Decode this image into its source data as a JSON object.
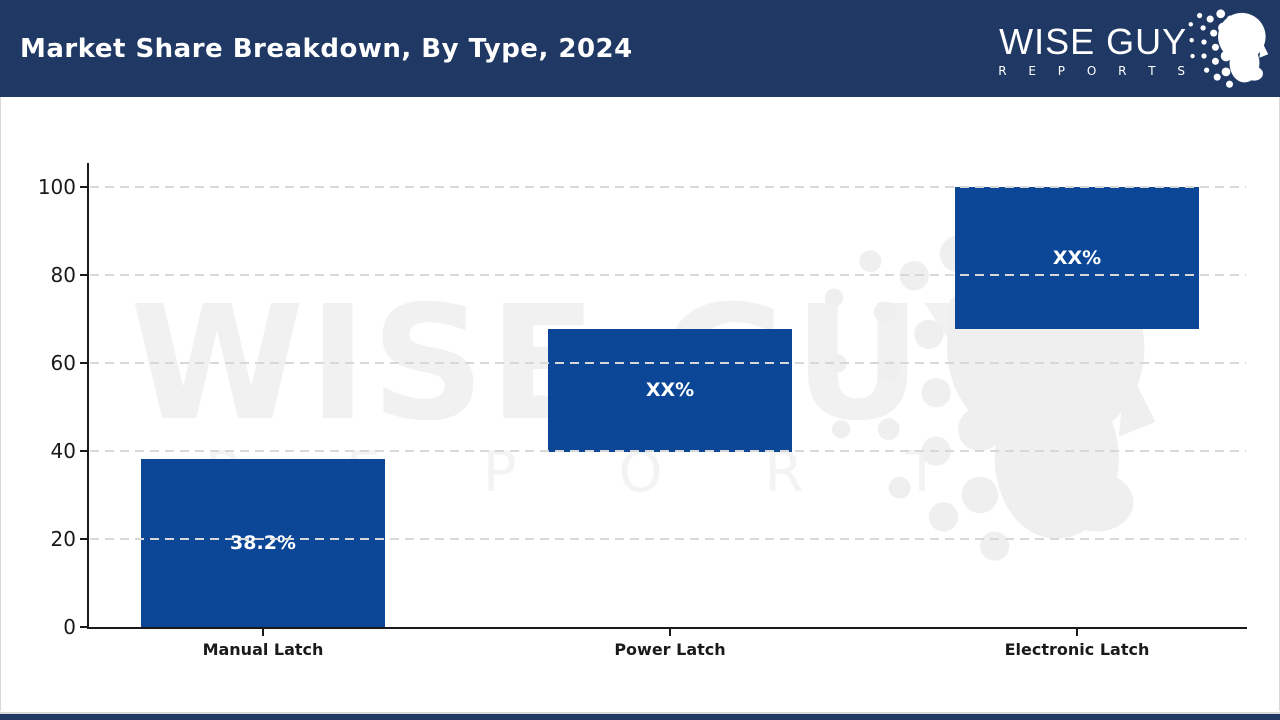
{
  "header": {
    "title": "Market Share Breakdown, By Type, 2024",
    "background_color": "#1f3864",
    "logo": {
      "line1": "WISE GUY",
      "line2": "R E P O R T S"
    }
  },
  "watermark": {
    "line1": "WISE GUY",
    "line2": "R E P O R T S"
  },
  "chart_data": {
    "type": "bar",
    "subtype": "waterfall",
    "title": "Market Share Breakdown, By Type, 2024",
    "categories": [
      "Manual Latch",
      "Power Latch",
      "Electronic Latch"
    ],
    "segments": [
      {
        "category": "Manual Latch",
        "start": 0,
        "end": 38.2,
        "label": "38.2%"
      },
      {
        "category": "Power Latch",
        "start": 39.8,
        "end": 67.7,
        "label": "XX%"
      },
      {
        "category": "Electronic Latch",
        "start": 67.7,
        "end": 100,
        "label": "XX%"
      }
    ],
    "xlabel": "",
    "ylabel": "",
    "ylim": [
      0,
      100
    ],
    "yticks": [
      0,
      20,
      40,
      60,
      80,
      100
    ],
    "grid": "horizontal-dashed",
    "grid_color": "#d8d8d8",
    "bar_color": "#0b4697",
    "bar_label_color": "#ffffff",
    "legend": "none"
  },
  "footer": {
    "color": "#1f3864"
  }
}
